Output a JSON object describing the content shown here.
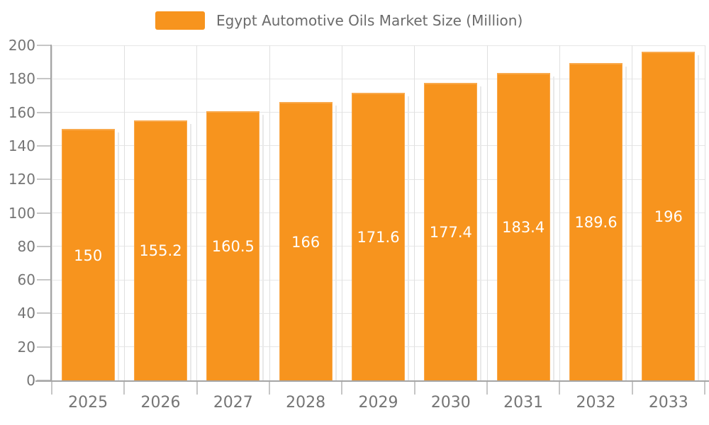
{
  "chart_data": {
    "type": "bar",
    "title": "Egypt Automotive Oils Market Size (Million)",
    "series_name": "Egypt Automotive Oils Market Size (Million)",
    "categories": [
      "2025",
      "2026",
      "2027",
      "2028",
      "2029",
      "2030",
      "2031",
      "2032",
      "2033"
    ],
    "values": [
      150,
      155.2,
      160.5,
      166,
      171.6,
      177.4,
      183.4,
      189.6,
      196
    ],
    "bar_labels": [
      "150",
      "155.2",
      "160.5",
      "166",
      "171.6",
      "177.4",
      "183.4",
      "189.6",
      "196"
    ],
    "xlabel": "",
    "ylabel": "",
    "ylim": [
      0,
      200
    ],
    "ytick_step": 20,
    "yticks": [
      0,
      20,
      40,
      60,
      80,
      100,
      120,
      140,
      160,
      180,
      200
    ],
    "grid": true,
    "legend_position": "top-center",
    "colors": {
      "bar": "#f7941e",
      "bar_edge": "#f9a94c",
      "bar_value_text": "#ffffff",
      "bar_shadow": "#e9e9e9",
      "grid_horizontal": "#e6e6e6",
      "grid_vertical": "#e0e0e0",
      "axis_line": "#a5a5a5",
      "tick": "#c6c6c6",
      "axis_text": "#757575",
      "legend_text": "#6b6b6b",
      "background": "#ffffff"
    }
  }
}
